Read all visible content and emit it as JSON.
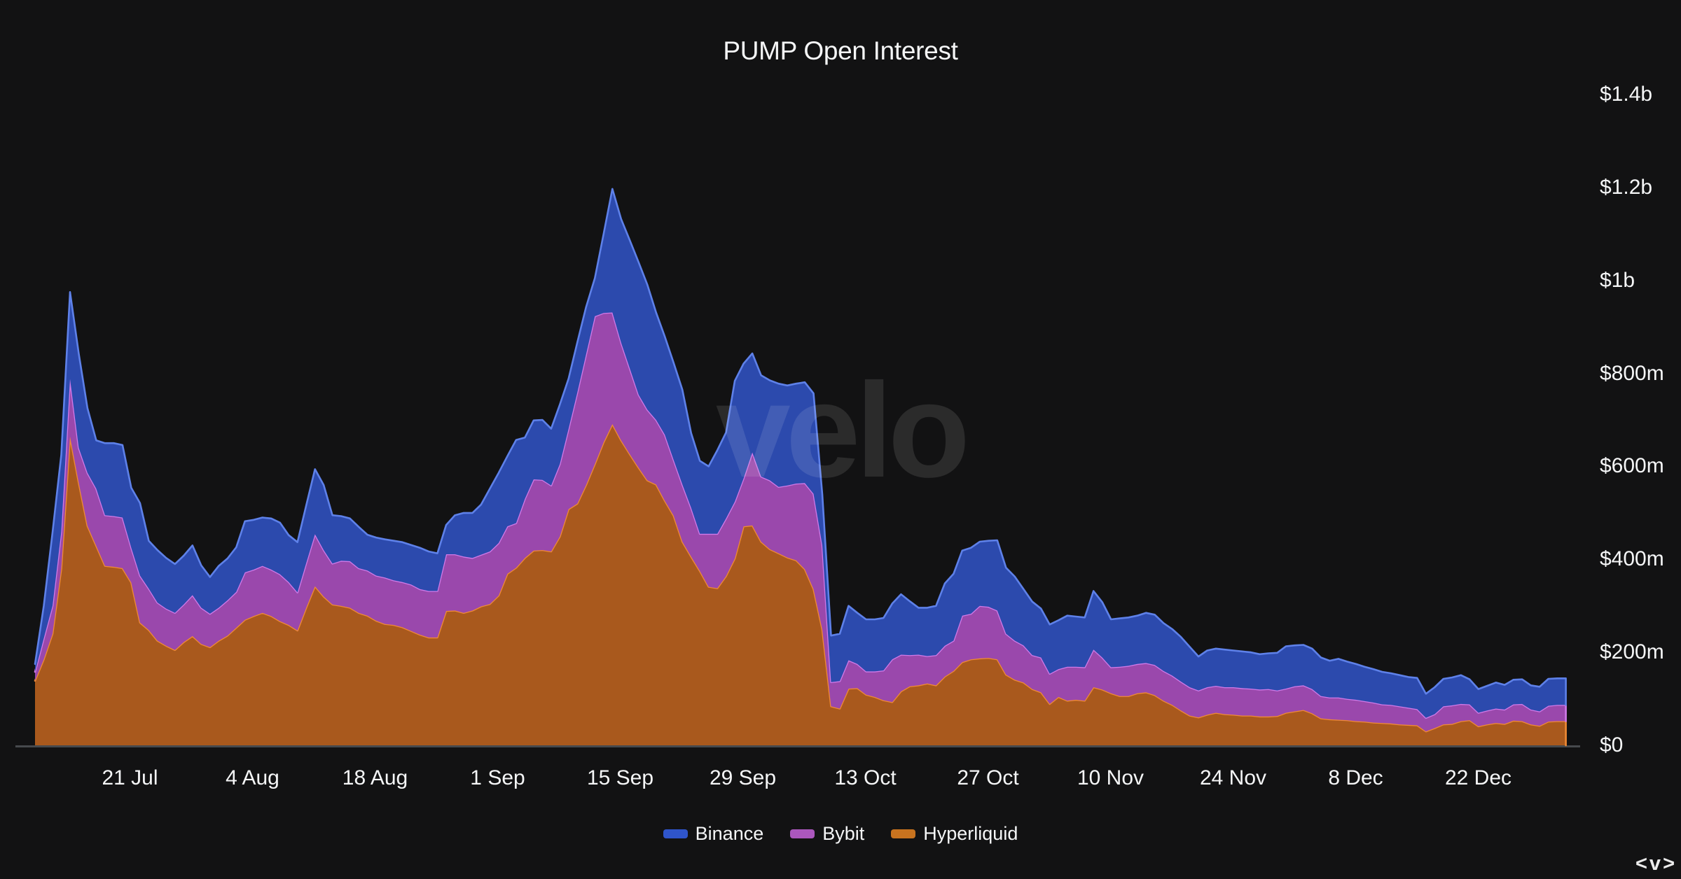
{
  "page": {
    "background": "#111213"
  },
  "header": {
    "title": "PUMP Open Interest"
  },
  "watermark": {
    "text": "velo"
  },
  "brand_mark": {
    "text": "<v>"
  },
  "chart_data": {
    "type": "area",
    "stacked": true,
    "title": "PUMP Open Interest",
    "unit": "USD (millions)",
    "ylim": [
      0,
      1400
    ],
    "grid": false,
    "legend_position": "bottom",
    "y_ticks": [
      {
        "label": "$0",
        "value": 0
      },
      {
        "label": "$200m",
        "value": 200
      },
      {
        "label": "$400m",
        "value": 400
      },
      {
        "label": "$600m",
        "value": 600
      },
      {
        "label": "$800m",
        "value": 800
      },
      {
        "label": "$1b",
        "value": 1000
      },
      {
        "label": "$1.2b",
        "value": 1200
      },
      {
        "label": "$1.4b",
        "value": 1400
      }
    ],
    "x_ticks": [
      "21 Jul",
      "4 Aug",
      "18 Aug",
      "1 Sep",
      "15 Sep",
      "29 Sep",
      "13 Oct",
      "27 Oct",
      "10 Nov",
      "24 Nov",
      "8 Dec",
      "22 Dec"
    ],
    "series": [
      {
        "name": "Hyperliquid",
        "fill": "#a9591d",
        "stroke": "#ef8a35",
        "legend": "#c8731f",
        "values": [
          139,
          185,
          240,
          380,
          664,
          565,
          472,
          429,
          386,
          384,
          381,
          350,
          264,
          248,
          225,
          214,
          205,
          222,
          235,
          218,
          211,
          225,
          236,
          253,
          270,
          278,
          285,
          278,
          267,
          259,
          247,
          296,
          342,
          320,
          303,
          300,
          296,
          285,
          279,
          268,
          261,
          259,
          254,
          246,
          238,
          232,
          232,
          289,
          290,
          285,
          290,
          299,
          304,
          322,
          369,
          382,
          403,
          419,
          420,
          417,
          449,
          508,
          520,
          560,
          605,
          652,
          691,
          656,
          626,
          597,
          570,
          561,
          526,
          494,
          438,
          406,
          375,
          341,
          338,
          364,
          402,
          471,
          473,
          438,
          422,
          413,
          404,
          398,
          379,
          336,
          249,
          84,
          79,
          122,
          123,
          109,
          104,
          97,
          93,
          116,
          127,
          129,
          133,
          129,
          148,
          160,
          179,
          185,
          187,
          188,
          185,
          152,
          141,
          135,
          121,
          114,
          89,
          104,
          96,
          98,
          96,
          125,
          120,
          112,
          106,
          106,
          112,
          114,
          108,
          96,
          87,
          75,
          64,
          60,
          66,
          70,
          67,
          66,
          64,
          64,
          62,
          62,
          63,
          70,
          73,
          76,
          69,
          58,
          56,
          55,
          54,
          52,
          51,
          49,
          48,
          47,
          45,
          44,
          43,
          30,
          37,
          45,
          46,
          52,
          54,
          41,
          45,
          48,
          46,
          53,
          52,
          45,
          42,
          51,
          52,
          52
        ]
      },
      {
        "name": "Bybit",
        "fill": "#9a48ac",
        "stroke": "#d07ae8",
        "legend": "#ab57bd",
        "values": [
          19,
          45,
          60,
          80,
          124,
          75,
          114,
          123,
          109,
          109,
          109,
          75,
          101,
          89,
          82,
          80,
          80,
          81,
          88,
          78,
          72,
          71,
          76,
          77,
          102,
          100,
          101,
          100,
          101,
          92,
          82,
          96,
          112,
          100,
          88,
          97,
          100,
          96,
          97,
          97,
          100,
          96,
          97,
          100,
          98,
          100,
          100,
          122,
          121,
          121,
          113,
          111,
          113,
          113,
          102,
          96,
          127,
          153,
          151,
          142,
          156,
          173,
          239,
          281,
          318,
          278,
          240,
          210,
          184,
          157,
          152,
          139,
          142,
          120,
          123,
          105,
          80,
          114,
          117,
          124,
          122,
          103,
          157,
          140,
          148,
          143,
          155,
          165,
          185,
          205,
          181,
          52,
          59,
          61,
          52,
          50,
          55,
          64,
          92,
          79,
          67,
          66,
          59,
          65,
          66,
          65,
          100,
          98,
          113,
          110,
          105,
          88,
          84,
          80,
          73,
          75,
          65,
          60,
          73,
          71,
          72,
          81,
          69,
          56,
          63,
          65,
          63,
          63,
          65,
          64,
          63,
          62,
          61,
          58,
          59,
          58,
          58,
          59,
          59,
          58,
          58,
          59,
          55,
          52,
          54,
          53,
          52,
          48,
          47,
          48,
          46,
          46,
          44,
          43,
          40,
          40,
          39,
          37,
          35,
          29,
          30,
          39,
          40,
          37,
          34,
          29,
          30,
          31,
          31,
          35,
          37,
          32,
          31,
          34,
          35,
          35
        ]
      },
      {
        "name": "Binance",
        "fill": "#2c4aad",
        "stroke": "#5e81e9",
        "legend": "#2f55cb",
        "values": [
          17,
          70,
          158,
          165,
          187,
          203,
          139,
          104,
          155,
          157,
          156,
          129,
          156,
          103,
          113,
          109,
          105,
          105,
          107,
          91,
          79,
          90,
          90,
          96,
          110,
          107,
          104,
          110,
          111,
          101,
          108,
          124,
          140,
          140,
          104,
          96,
          92,
          89,
          77,
          82,
          82,
          85,
          86,
          85,
          89,
          85,
          81,
          63,
          84,
          94,
          97,
          108,
          135,
          151,
          151,
          179,
          132,
          127,
          129,
          122,
          128,
          108,
          108,
          102,
          82,
          170,
          266,
          266,
          276,
          285,
          269,
          231,
          211,
          209,
          204,
          161,
          157,
          145,
          180,
          185,
          260,
          247,
          213,
          218,
          215,
          222,
          215,
          215,
          217,
          216,
          110,
          100,
          102,
          117,
          110,
          112,
          112,
          113,
          120,
          130,
          116,
          101,
          104,
          106,
          134,
          144,
          140,
          142,
          138,
          142,
          151,
          142,
          138,
          121,
          115,
          105,
          106,
          105,
          110,
          108,
          107,
          126,
          119,
          103,
          104,
          104,
          104,
          108,
          108,
          103,
          100,
          96,
          87,
          73,
          79,
          80,
          81,
          79,
          79,
          78,
          76,
          77,
          81,
          91,
          88,
          87,
          87,
          83,
          79,
          83,
          80,
          77,
          74,
          72,
          70,
          68,
          67,
          66,
          67,
          52,
          58,
          59,
          60,
          62,
          54,
          51,
          53,
          56,
          53,
          53,
          53,
          52,
          53,
          58,
          57,
          57
        ]
      }
    ],
    "legend": [
      {
        "name": "Binance",
        "color": "#2f55cb"
      },
      {
        "name": "Bybit",
        "color": "#ab57bd"
      },
      {
        "name": "Hyperliquid",
        "color": "#c8731f"
      }
    ]
  }
}
